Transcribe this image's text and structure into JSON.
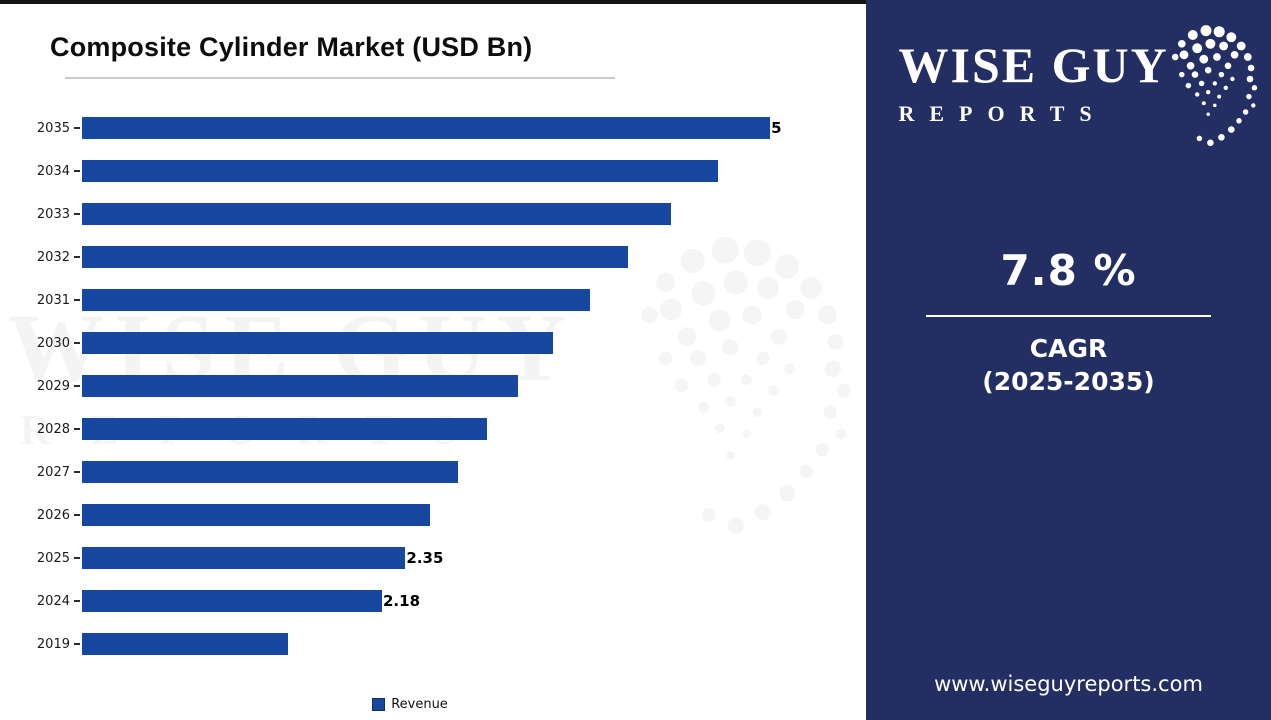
{
  "title": "Composite Cylinder Market (USD Bn)",
  "legend": {
    "label": "Revenue"
  },
  "watermark": {
    "line1": "WISE GUY",
    "line2": "REPORTS"
  },
  "sidebar": {
    "logo_line1": "WISE GUY",
    "logo_line2": "REPORTS",
    "cagr_value": "7.8 %",
    "cagr_label_line1": "CAGR",
    "cagr_label_line2": "(2025-2035)",
    "website": "www.wiseguyreports.com",
    "background_color": "#232f62"
  },
  "chart_data": {
    "type": "bar",
    "orientation": "horizontal",
    "title": "Composite Cylinder Market (USD Bn)",
    "categories": [
      "2035",
      "2034",
      "2033",
      "2032",
      "2031",
      "2030",
      "2029",
      "2028",
      "2027",
      "2026",
      "2025",
      "2024",
      "2019"
    ],
    "series": [
      {
        "name": "Revenue",
        "values": [
          5.0,
          4.62,
          4.28,
          3.97,
          3.69,
          3.42,
          3.17,
          2.94,
          2.73,
          2.53,
          2.35,
          2.18,
          1.5
        ]
      }
    ],
    "data_labels": {
      "2035": "5",
      "2025": "2.35",
      "2024": "2.18"
    },
    "xlim": [
      0,
      5.45
    ],
    "bar_color": "#17479e",
    "grid": false,
    "legend_position": "bottom",
    "xlabel": "",
    "ylabel": ""
  }
}
